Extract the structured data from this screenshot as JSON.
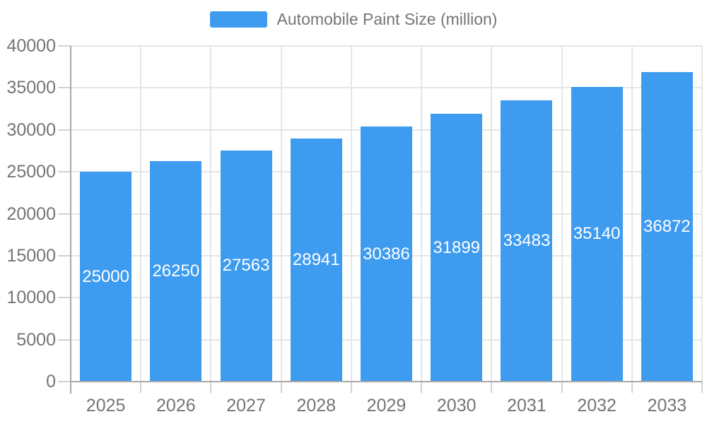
{
  "legend": {
    "label": "Automobile Paint Size (million)"
  },
  "colors": {
    "bar": "#3D9BF0",
    "axis_line": "#A8A8A8",
    "tick_line": "#D2D2D2",
    "grid_line": "#E6E6E6",
    "label_text": "#757575",
    "value_label_text": "#FFFFFF",
    "background": "#FFFFFF"
  },
  "chart_data": {
    "type": "bar",
    "title": "Automobile Paint Size (million)",
    "categories": [
      "2025",
      "2026",
      "2027",
      "2028",
      "2029",
      "2030",
      "2031",
      "2032",
      "2033"
    ],
    "series": [
      {
        "name": "Automobile Paint Size (million)",
        "values": [
          25000,
          26250,
          27563,
          28941,
          30386,
          31899,
          33483,
          35140,
          36872
        ]
      }
    ],
    "xlabel": "",
    "ylabel": "",
    "ylim": [
      0,
      40000
    ],
    "ytick_interval": 5000,
    "yticks": [
      0,
      5000,
      10000,
      15000,
      20000,
      25000,
      30000,
      35000,
      40000
    ],
    "grid": true,
    "vertical_gridlines": true,
    "legend_position": "top-center",
    "value_label_position": "inside-middle"
  }
}
